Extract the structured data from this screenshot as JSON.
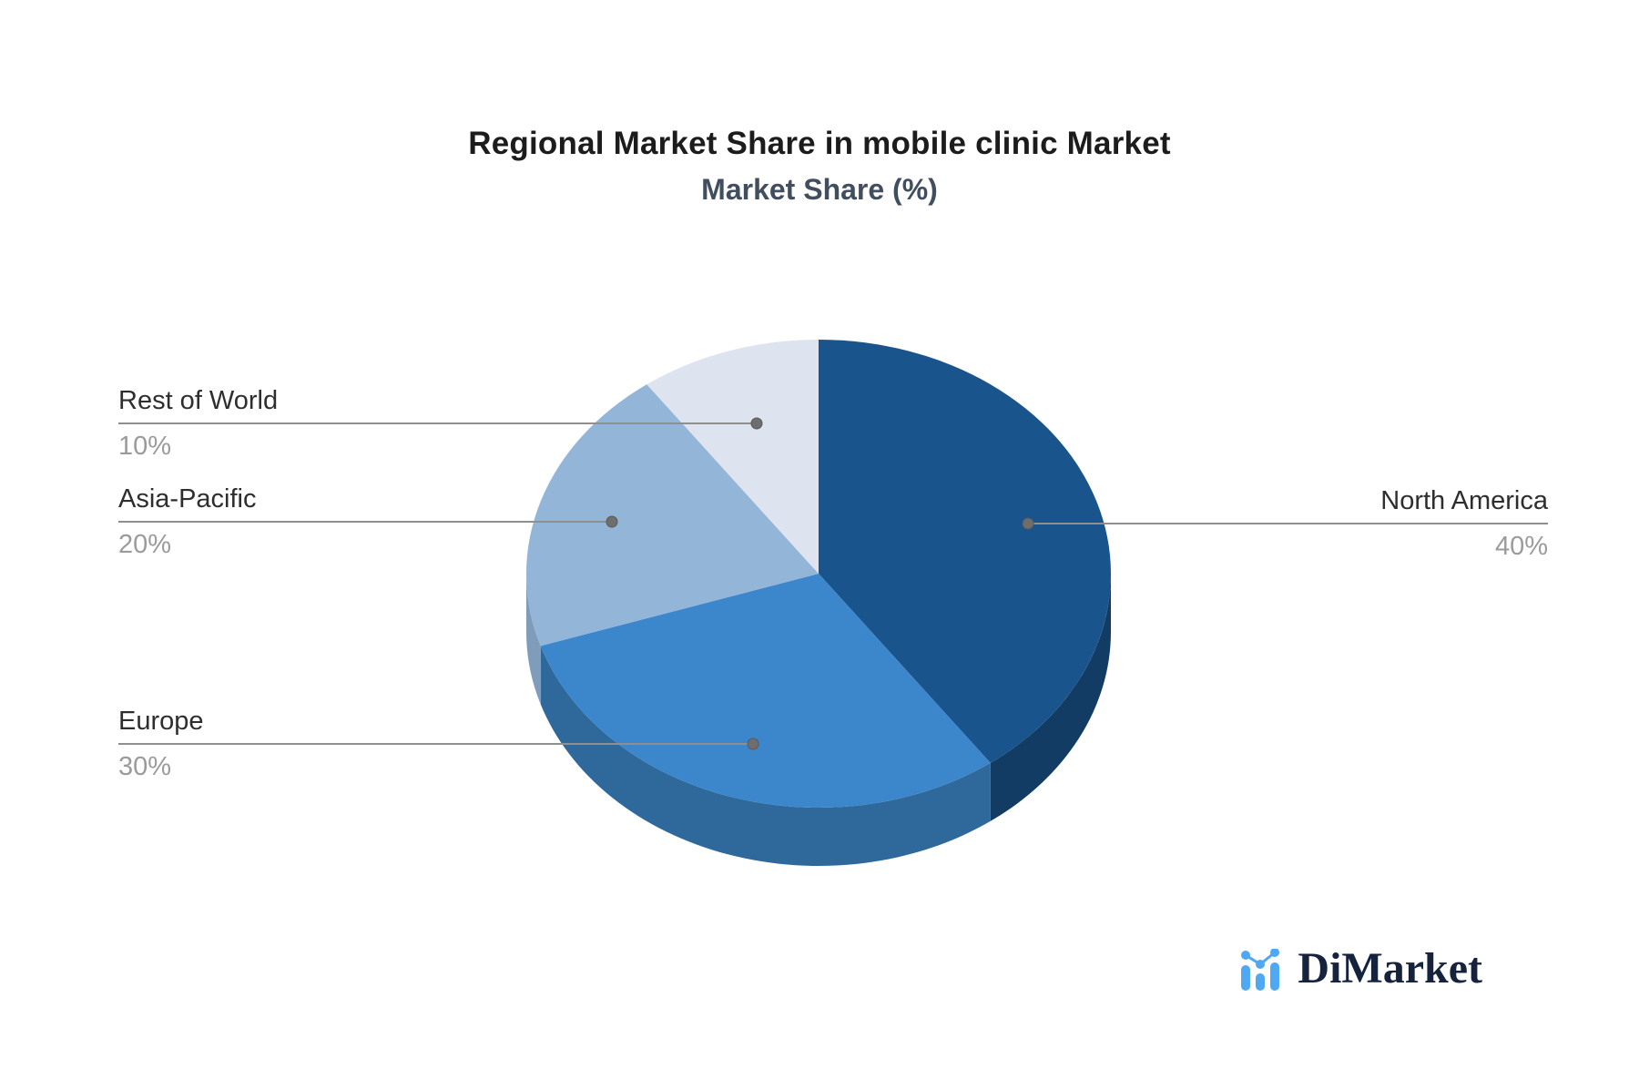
{
  "title": "Regional Market Share in mobile clinic Market",
  "subtitle": "Market Share (%)",
  "chart_data": {
    "type": "pie",
    "title": "Regional Market Share in mobile clinic Market",
    "subtitle": "Market Share (%)",
    "unit": "%",
    "start_angle_deg": 0,
    "direction": "clockwise",
    "effect": "3d-depth",
    "legend_position": "callout-labels",
    "slices": [
      {
        "label": "North America",
        "value": 40,
        "color": "#19558C",
        "side_color": "#123C63"
      },
      {
        "label": "Europe",
        "value": 30,
        "color": "#3C87CB",
        "side_color": "#2F689B"
      },
      {
        "label": "Asia-Pacific",
        "value": 20,
        "color": "#93B5D8",
        "side_color": "#7F9DBA"
      },
      {
        "label": "Rest of World",
        "value": 10,
        "color": "#DEE4EF",
        "side_color": "#C4CCDA"
      }
    ]
  },
  "callouts": [
    {
      "name": "North America",
      "value_label": "40%"
    },
    {
      "name": "Europe",
      "value_label": "30%"
    },
    {
      "name": "Asia-Pacific",
      "value_label": "20%"
    },
    {
      "name": "Rest of World",
      "value_label": "10%"
    }
  ],
  "style": {
    "leader_line_color": "#8f8f8f",
    "dot_color": "#6e6e6e",
    "pct_text_color": "#9b9b9b",
    "label_text_color": "#2e2e2e"
  },
  "logo": {
    "text": "DiMarket",
    "icon": "bar-chart-with-trend-dots",
    "icon_color": "#4FA8F2",
    "text_color": "#16233d"
  }
}
